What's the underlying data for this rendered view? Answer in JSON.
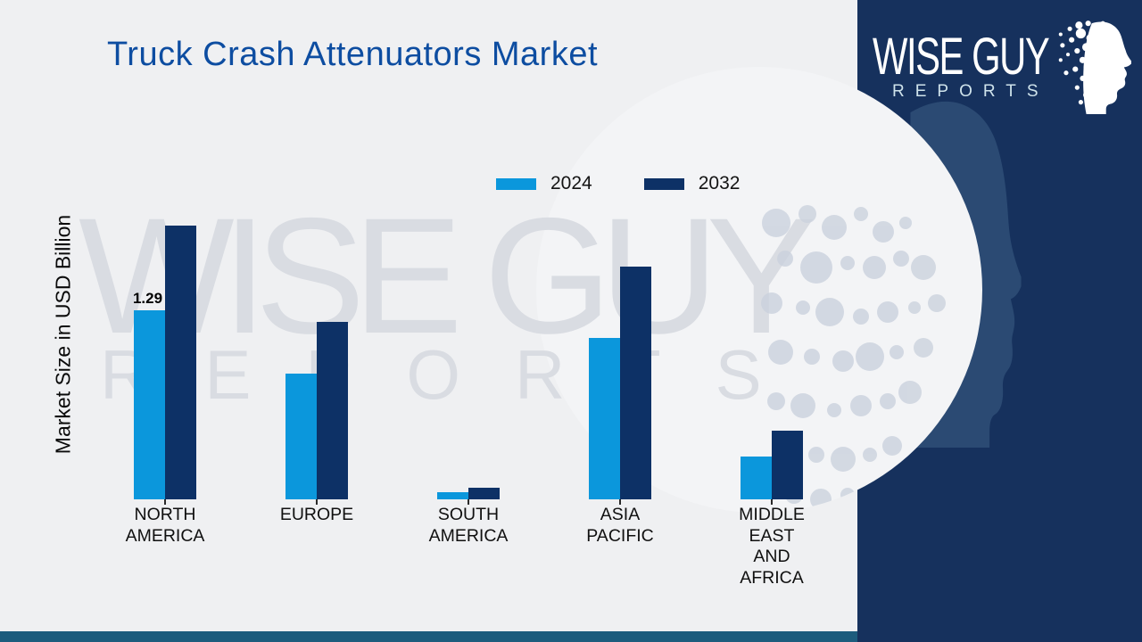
{
  "header": {
    "title": "Truck Crash Attenuators Market",
    "title_color": "#0d4da1"
  },
  "logo": {
    "brand_line1": "WISE GUY",
    "brand_line2": "REPORTS",
    "panel_color": "#16315d",
    "face_watermark_color": "#2b4a73"
  },
  "watermark": {
    "line1": "WISE GUY",
    "line2": "REPORTS",
    "text_color": "#d9dce2"
  },
  "footer": {
    "strip_color": "#1d5c7d"
  },
  "chart_data": {
    "type": "bar",
    "title": "Truck Crash Attenuators Market",
    "xlabel": "",
    "ylabel": "Market Size in USD Billion",
    "categories": [
      "NORTH AMERICA",
      "EUROPE",
      "SOUTH AMERICA",
      "ASIA PACIFIC",
      "MIDDLE EAST AND AFRICA"
    ],
    "category_lines": [
      [
        "NORTH",
        "AMERICA"
      ],
      [
        "EUROPE"
      ],
      [
        "SOUTH",
        "AMERICA"
      ],
      [
        "ASIA",
        "PACIFIC"
      ],
      [
        "MIDDLE",
        "EAST",
        "AND",
        "AFRICA"
      ]
    ],
    "series": [
      {
        "name": "2024",
        "color": "#0b97dc",
        "values": [
          1.29,
          0.86,
          0.05,
          1.1,
          0.29
        ]
      },
      {
        "name": "2032",
        "color": "#0d3166",
        "values": [
          1.87,
          1.21,
          0.08,
          1.59,
          0.47
        ]
      }
    ],
    "data_labels": [
      {
        "series": "2024",
        "category_index": 0,
        "text": "1.29"
      }
    ],
    "legend_position": "top",
    "grid": false,
    "ylim": [
      0,
      2.0
    ],
    "y_axis_ticks_visible": false
  }
}
